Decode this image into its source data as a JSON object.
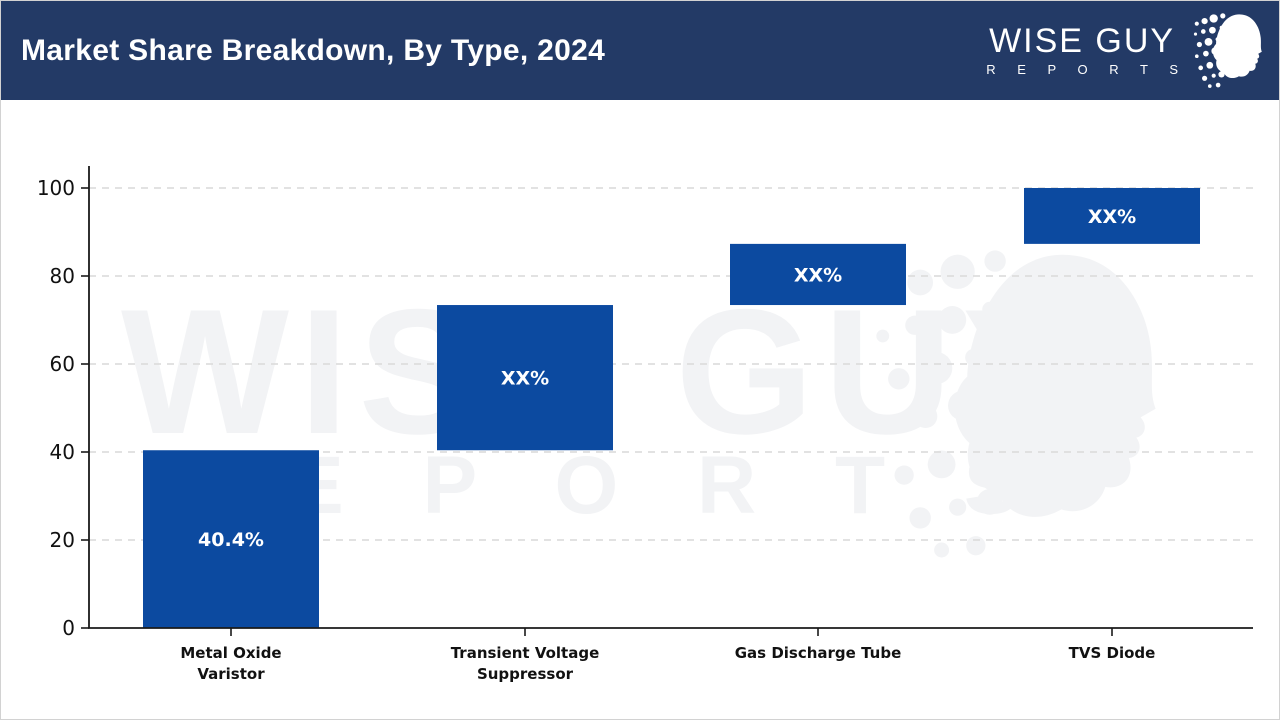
{
  "header": {
    "title": "Market Share Breakdown, By Type, 2024",
    "logo": {
      "line1": "WISE GUY",
      "line2": "R E P O R T S"
    }
  },
  "watermark": {
    "line1": "WISE GUY",
    "line2": "R E P O R T S"
  },
  "colors": {
    "header_bg": "#233A66",
    "bar": "#0C4AA0",
    "bar_label": "#FFFFFF",
    "axis": "#1A1A1A",
    "grid": "#D9D9D9",
    "tick_label": "#111111",
    "watermark": "#F2F3F5"
  },
  "chart_data": {
    "type": "bar",
    "subtype": "waterfall",
    "title": "Market Share Breakdown, By Type, 2024",
    "categories": [
      "Metal Oxide Varistor",
      "Transient Voltage Suppressor",
      "Gas Discharge Tube",
      "TVS Diode"
    ],
    "category_label_lines": [
      [
        "Metal Oxide",
        "Varistor"
      ],
      [
        "Transient Voltage",
        "Suppressor"
      ],
      [
        "Gas Discharge Tube"
      ],
      [
        "TVS Diode"
      ]
    ],
    "segments": [
      {
        "category": "Metal Oxide Varistor",
        "start": 0,
        "end": 40.4,
        "value": 40.4,
        "label": "40.4%"
      },
      {
        "category": "Transient Voltage Suppressor",
        "start": 40.4,
        "end": 73.4,
        "value": 33.0,
        "label": "XX%"
      },
      {
        "category": "Gas Discharge Tube",
        "start": 73.4,
        "end": 87.3,
        "value": 13.9,
        "label": "XX%"
      },
      {
        "category": "TVS Diode",
        "start": 87.3,
        "end": 100,
        "value": 12.7,
        "label": "XX%"
      }
    ],
    "ylabel": "",
    "xlabel": "",
    "ylim": [
      0,
      100
    ],
    "yticks": [
      0,
      20,
      40,
      60,
      80,
      100
    ],
    "grid": "horizontal-dashed",
    "legend": "none"
  }
}
